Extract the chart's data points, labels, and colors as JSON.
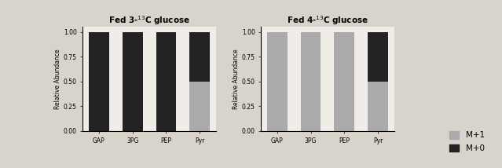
{
  "chart1_title": "Fed 3-$^{13}$C glucose",
  "chart2_title": "Fed 4-$^{13}$C glucose",
  "categories": [
    "GAP",
    "3PG",
    "PEP",
    "Pyr"
  ],
  "chart1_M0": [
    1.0,
    1.0,
    1.0,
    0.5
  ],
  "chart1_M1": [
    0.0,
    0.0,
    0.0,
    0.5
  ],
  "chart2_M0": [
    0.0,
    0.0,
    0.0,
    0.5
  ],
  "chart2_M1": [
    1.0,
    1.0,
    1.0,
    0.5
  ],
  "color_M1": "#aaaaaa",
  "color_M0": "#222222",
  "ylabel": "Relative Abundance",
  "ylim": [
    0,
    1.05
  ],
  "yticks": [
    0.0,
    0.25,
    0.5,
    0.75,
    1.0
  ],
  "ytick_labels": [
    "0.00",
    "0.25",
    "0.50",
    "0.75",
    "1.00"
  ],
  "legend_M1": "M+1",
  "legend_M0": "M+0",
  "background_color": "#d8d4cc",
  "plot_bg": "#f0ede8",
  "bar_width": 0.6,
  "title_fontsize": 7.5,
  "axis_fontsize": 5.5,
  "tick_fontsize": 5.5,
  "legend_fontsize": 7.5
}
